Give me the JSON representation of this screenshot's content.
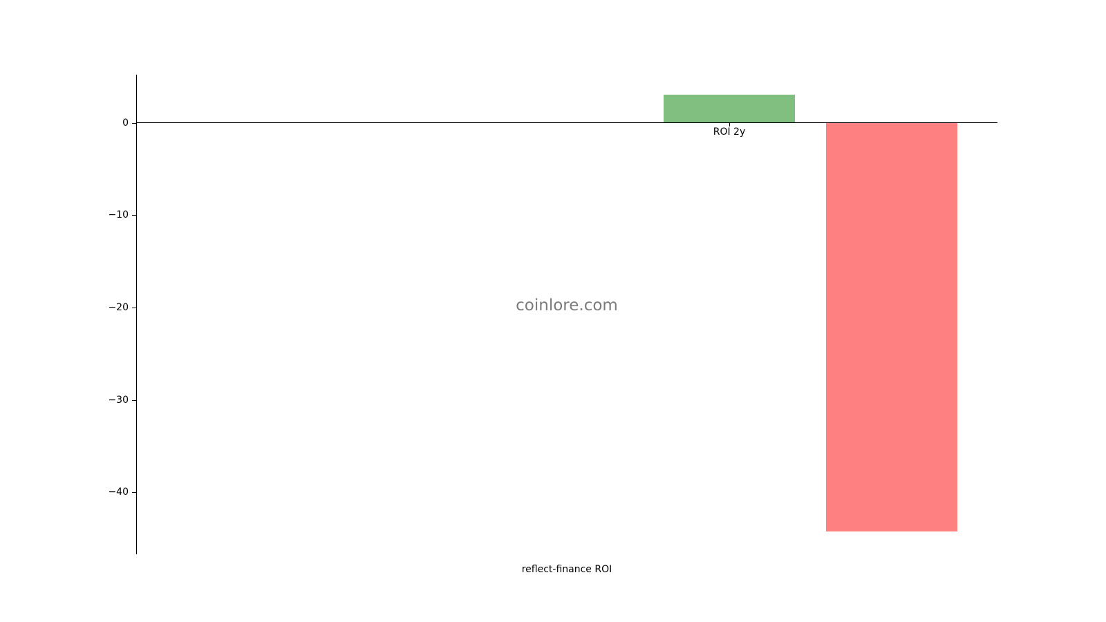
{
  "chart_data": {
    "type": "bar",
    "title": "",
    "categories": [
      "ROI 2y",
      ""
    ],
    "values": [
      3.0,
      -44.2
    ],
    "bar_colors": [
      "#80bf80",
      "#ff8080"
    ],
    "xlabel": "reflect-finance ROI",
    "ylabel": "",
    "ylim": [
      -46.7,
      5.2
    ],
    "yticks": [
      {
        "value": 0,
        "label": "0"
      },
      {
        "value": -10,
        "label": "−10"
      },
      {
        "value": -20,
        "label": "−20"
      },
      {
        "value": -30,
        "label": "−30"
      },
      {
        "value": -40,
        "label": "−40"
      }
    ],
    "grid": false,
    "legend_position": "none",
    "watermark": "coinlore.com"
  },
  "colors": {
    "positive_bar": "#80bf80",
    "negative_bar": "#ff8080",
    "axis": "#000000",
    "watermark_text": "#7b7b7b"
  }
}
